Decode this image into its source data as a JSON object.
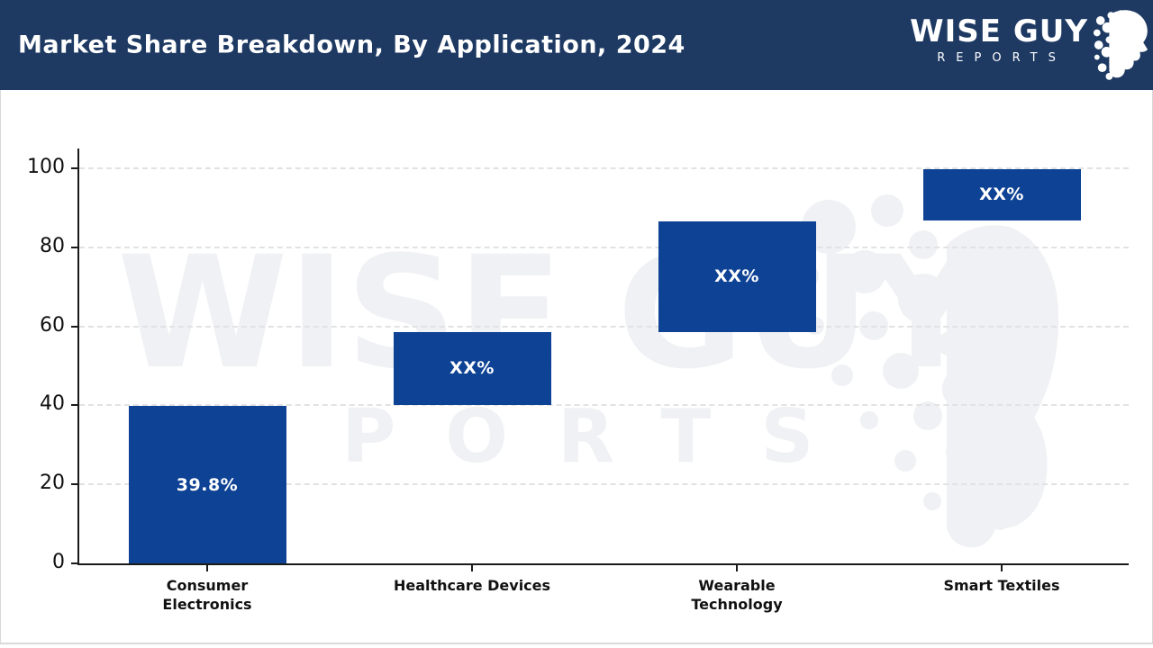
{
  "header": {
    "title": "Market Share Breakdown, By Application, 2024",
    "bg_color": "#1e3a63",
    "logo": {
      "line1": "WISE GUY",
      "line2": "REPORTS",
      "head_icon": "dotted-face-profile"
    }
  },
  "watermark": {
    "line1": "WISE GUY",
    "line2": "REPORTS",
    "head_icon": "dotted-face-profile",
    "color": "#f0f1f4"
  },
  "chart_data": {
    "type": "bar",
    "subtype": "waterfall",
    "title": "Market Share Breakdown, By Application, 2024",
    "xlabel": "",
    "ylabel": "",
    "categories": [
      "Consumer Electronics",
      "Healthcare Devices",
      "Wearable Technology",
      "Smart Textiles"
    ],
    "category_lines": [
      [
        "Consumer",
        "Electronics"
      ],
      [
        "Healthcare Devices"
      ],
      [
        "Wearable",
        "Technology"
      ],
      [
        "Smart Textiles"
      ]
    ],
    "segments": [
      {
        "category": "Consumer Electronics",
        "start": 0,
        "end": 39.8,
        "label": "39.8%"
      },
      {
        "category": "Healthcare Devices",
        "start": 40.2,
        "end": 58.5,
        "label": "XX%"
      },
      {
        "category": "Wearable Technology",
        "start": 58.5,
        "end": 86.6,
        "label": "XX%"
      },
      {
        "category": "Smart Textiles",
        "start": 86.8,
        "end": 99.8,
        "label": "XX%"
      }
    ],
    "yticks": [
      0,
      20,
      40,
      60,
      80,
      100
    ],
    "ylim": [
      0,
      105
    ],
    "grid": "horizontal-dashed",
    "legend": "none",
    "bar_color": "#0d4294",
    "bar_label_color": "#ffffff",
    "axis_color": "#1a1a1a"
  }
}
